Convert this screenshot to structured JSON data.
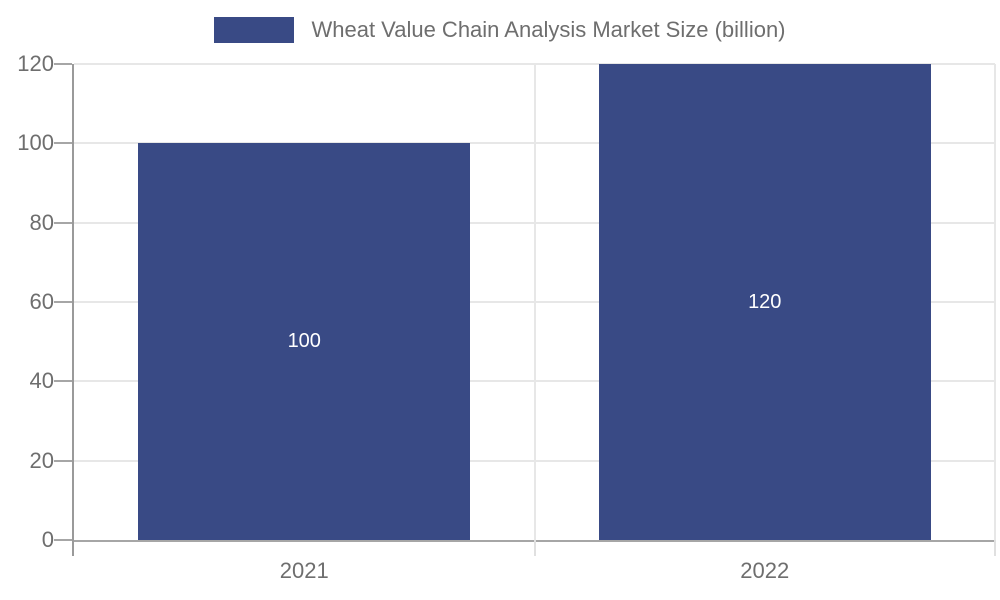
{
  "chart_data": {
    "type": "bar",
    "title": "Wheat Value Chain Analysis Market Size (billion)",
    "legend": [
      "Wheat Value Chain Analysis Market Size (billion)"
    ],
    "legend_position": "top",
    "categories": [
      "2021",
      "2022"
    ],
    "values": [
      100,
      120
    ],
    "bar_labels": [
      "100",
      "120"
    ],
    "xlabel": "",
    "ylabel": "",
    "ylim": [
      0,
      120
    ],
    "yticks": [
      0,
      20,
      40,
      60,
      80,
      100,
      120
    ],
    "grid": true,
    "colors": {
      "bar": "#394A85",
      "value_label": "#FFFFFF",
      "axis_text": "#6E6E6E"
    }
  }
}
